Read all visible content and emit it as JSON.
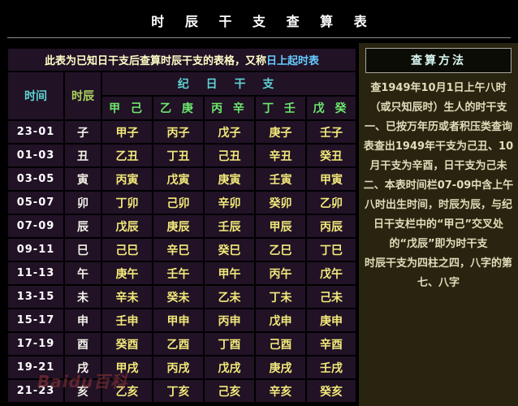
{
  "title": "时 辰 干 支 查 算 表",
  "table": {
    "note": {
      "prefix": "此表为已知日干支后查算时辰干支的表格，又称",
      "highlight": "日上起时表"
    },
    "col_time": "时间",
    "col_hour": "时辰",
    "group_header": "纪 日 干 支",
    "day_stems": [
      "甲 己",
      "乙 庚",
      "丙 辛",
      "丁 壬",
      "戊 癸"
    ],
    "rows": [
      {
        "time": "23-01",
        "branch": "子",
        "cells": [
          "甲子",
          "丙子",
          "戊子",
          "庚子",
          "壬子"
        ]
      },
      {
        "time": "01-03",
        "branch": "丑",
        "cells": [
          "乙丑",
          "丁丑",
          "己丑",
          "辛丑",
          "癸丑"
        ]
      },
      {
        "time": "03-05",
        "branch": "寅",
        "cells": [
          "丙寅",
          "戊寅",
          "庚寅",
          "壬寅",
          "甲寅"
        ]
      },
      {
        "time": "05-07",
        "branch": "卯",
        "cells": [
          "丁卯",
          "己卯",
          "辛卯",
          "癸卯",
          "乙卯"
        ]
      },
      {
        "time": "07-09",
        "branch": "辰",
        "cells": [
          "戊辰",
          "庚辰",
          "壬辰",
          "甲辰",
          "丙辰"
        ]
      },
      {
        "time": "09-11",
        "branch": "巳",
        "cells": [
          "己巳",
          "辛巳",
          "癸巳",
          "乙巳",
          "丁巳"
        ]
      },
      {
        "time": "11-13",
        "branch": "午",
        "cells": [
          "庚午",
          "壬午",
          "甲午",
          "丙午",
          "戊午"
        ]
      },
      {
        "time": "13-15",
        "branch": "未",
        "cells": [
          "辛未",
          "癸未",
          "乙未",
          "丁未",
          "己未"
        ]
      },
      {
        "time": "15-17",
        "branch": "申",
        "cells": [
          "壬申",
          "甲申",
          "丙申",
          "戊申",
          "庚申"
        ]
      },
      {
        "time": "17-19",
        "branch": "酉",
        "cells": [
          "癸酉",
          "乙酉",
          "丁酉",
          "己酉",
          "辛酉"
        ]
      },
      {
        "time": "19-21",
        "branch": "戌",
        "cells": [
          "甲戌",
          "丙戌",
          "戊戌",
          "庚戌",
          "壬戌"
        ]
      },
      {
        "time": "21-23",
        "branch": "亥",
        "cells": [
          "乙亥",
          "丁亥",
          "己亥",
          "辛亥",
          "癸亥"
        ]
      }
    ]
  },
  "method_panel": {
    "header": "查算方法",
    "lines": [
      "查1949年10月1日上午八时（或只知辰时）生人的时干支",
      "一、已按万年历或者积压类查询表查出1949年干支为己丑、10月干支为辛酉，日干支为己未",
      "二、本表时间栏07-09中含上午八时出生时间，时辰为辰，与纪日干支栏中的“甲己”交叉处的“戊辰”即为时干支",
      "时辰干支为四柱之四，八字的第七、八字"
    ]
  },
  "watermark": "Baidu百科",
  "colors": {
    "page_bg": "#000000",
    "cell_bg": "#211226",
    "panel_bg": "#282410",
    "note_yellow": "#ffffc8",
    "note_cyan": "#66ccff",
    "header_cyan": "#5fd3d3",
    "header_green": "#6de86d",
    "hour_green": "#aad45f",
    "ganzhi_yellow": "#f2e97a",
    "white_text": "#ffffff"
  }
}
